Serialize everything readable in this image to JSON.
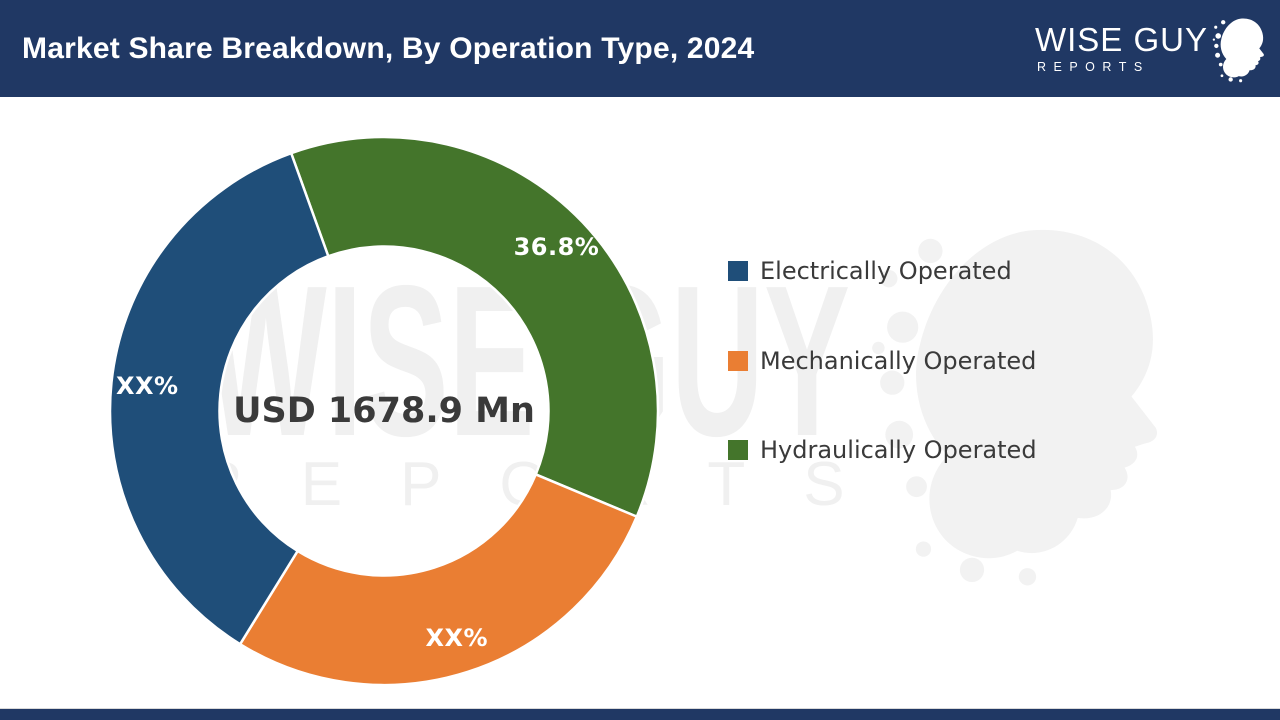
{
  "header": {
    "title": "Market Share Breakdown, By Operation Type, 2024",
    "logo": {
      "line1": "WISE GUY",
      "line2": "REPORTS"
    }
  },
  "watermark": {
    "line1": "WISE GUY",
    "line2": "REPORTS"
  },
  "chart_data": {
    "type": "pie",
    "subtype": "donut",
    "title": "Market Share Breakdown, By Operation Type, 2024",
    "center_label": "USD 1678.9 Mn",
    "start_angle_deg": -19.8,
    "inner_radius_ratio": 0.595,
    "legend_position": "right",
    "slices": [
      {
        "name": "Hydraulically Operated",
        "value_pct": 36.8,
        "label": "36.8%",
        "color": "#44752B"
      },
      {
        "name": "Mechanically Operated",
        "value_pct": 27.5,
        "label": "XX%",
        "color": "#EA7E33"
      },
      {
        "name": "Electrically Operated",
        "value_pct": 35.7,
        "label": "XX%",
        "color": "#1F4E79"
      }
    ]
  },
  "legend": {
    "items": [
      {
        "label": "Electrically Operated",
        "color": "#1F4E79"
      },
      {
        "label": "Mechanically Operated",
        "color": "#EA7E33"
      },
      {
        "label": "Hydraulically Operated",
        "color": "#44752B"
      }
    ]
  },
  "colors": {
    "header_bg": "#203864",
    "footer_bg": "#203864",
    "background": "#FFFFFF",
    "text_dark": "#3A3A3A",
    "watermark": "#F0F0F0"
  }
}
